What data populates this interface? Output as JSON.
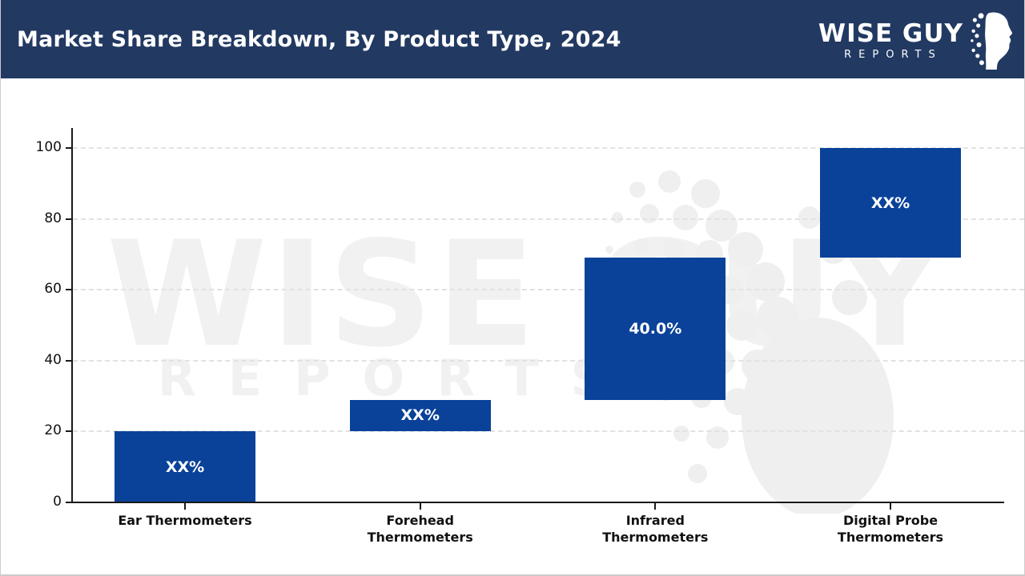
{
  "header": {
    "title": "Market Share Breakdown, By Product Type, 2024",
    "logo": {
      "line1": "WISE GUY",
      "line2": "REPORTS"
    }
  },
  "watermark": {
    "line1": "WISE GUY",
    "line2": "REPORTS"
  },
  "colors": {
    "header_bg": "#223962",
    "bar": "#0a4299",
    "bar_label": "#ffffff",
    "gridline": "#e2e2e2",
    "axis": "#1a1a1a",
    "watermark": "#f1f1f1"
  },
  "chart_data": {
    "type": "bar",
    "subtype": "floating-segment-waterfall",
    "title": "Market Share Breakdown, By Product Type, 2024",
    "categories": [
      "Ear Thermometers",
      "Forehead Thermometers",
      "Infrared Thermometers",
      "Digital Probe Thermometers"
    ],
    "category_label_lines": [
      [
        "Ear Thermometers"
      ],
      [
        "Forehead",
        "Thermometers"
      ],
      [
        "Infrared",
        "Thermometers"
      ],
      [
        "Digital Probe",
        "Thermometers"
      ]
    ],
    "series": [
      {
        "name": "Market share (%)",
        "segments": [
          {
            "category": "Ear Thermometers",
            "start": 0,
            "end": 20,
            "label": "XX%"
          },
          {
            "category": "Forehead Thermometers",
            "start": 20,
            "end": 29,
            "label": "XX%"
          },
          {
            "category": "Infrared Thermometers",
            "start": 29,
            "end": 69,
            "label": "40.0%"
          },
          {
            "category": "Digital Probe Thermometers",
            "start": 69,
            "end": 100,
            "label": "XX%"
          }
        ]
      }
    ],
    "xlabel": "",
    "ylabel": "",
    "ylim": [
      0,
      105
    ],
    "yticks": [
      0,
      20,
      40,
      60,
      80,
      100
    ],
    "grid": "horizontal-dashed",
    "legend": "none"
  }
}
